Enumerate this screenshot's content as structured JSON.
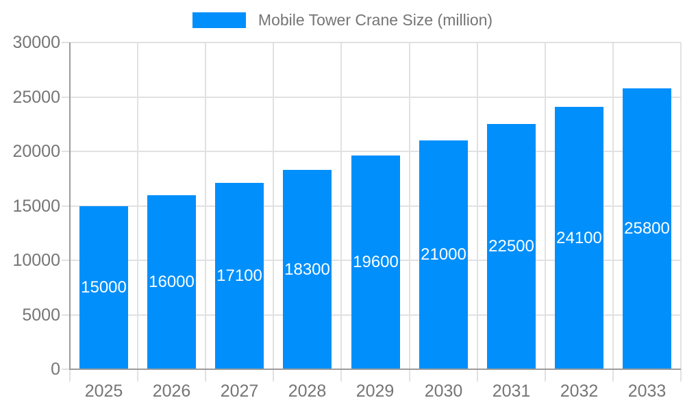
{
  "chart_data": {
    "type": "bar",
    "title": "Mobile Tower Crane Size (million)",
    "categories": [
      "2025",
      "2026",
      "2027",
      "2028",
      "2029",
      "2030",
      "2031",
      "2032",
      "2033"
    ],
    "values": [
      15000,
      16000,
      17100,
      18300,
      19600,
      21000,
      22500,
      24100,
      25800
    ],
    "series": [
      {
        "name": "Mobile Tower Crane Size (million)",
        "values": [
          15000,
          16000,
          17100,
          18300,
          19600,
          21000,
          22500,
          24100,
          25800
        ]
      }
    ],
    "xlabel": "",
    "ylabel": "",
    "ylim": [
      0,
      30000
    ],
    "yticks": [
      0,
      5000,
      10000,
      15000,
      20000,
      25000,
      30000
    ],
    "grid": true,
    "legend_position": "top-center",
    "bar_value_labels": "inside-center",
    "colors": {
      "bar": "#008FFB",
      "bar_label": "#FFFFFF",
      "axis_line": "#9B9B9B",
      "gridline": "#E1E1E1",
      "tick_label": "#757575",
      "legend_text": "#757575",
      "background": "#FFFFFF"
    }
  }
}
